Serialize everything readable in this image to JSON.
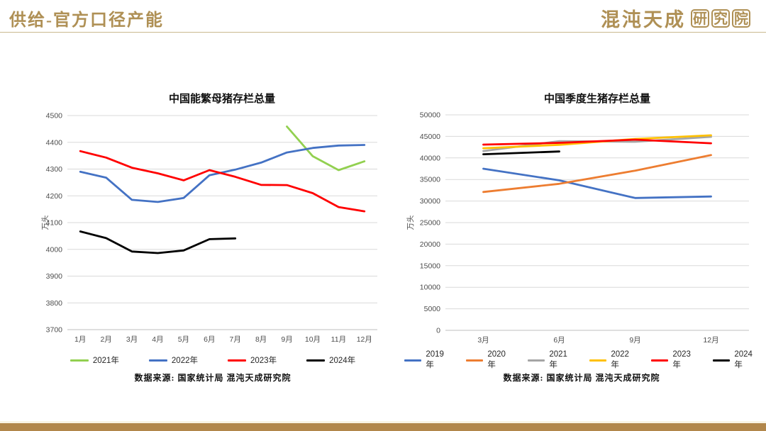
{
  "page": {
    "header": {
      "title": "供给-官方口径产能"
    },
    "logo": {
      "brand": "混沌天成",
      "seal_chars": [
        "研",
        "究",
        "院"
      ]
    },
    "colors": {
      "brand_gold": "#AF9055",
      "divider_tan": "#C9BA8F",
      "footer_gold": "#B2874B",
      "footer_cream": "#F9F4E4",
      "gridline_gray": "#D9D9D9",
      "axis_gray": "#BFBFBF"
    }
  },
  "chart_data": [
    {
      "type": "line",
      "title": "中国能繁母猪存栏总量",
      "ylabel": "万头",
      "xlabel": "",
      "ylim": [
        3700,
        4500
      ],
      "ytick_step": 100,
      "grid": true,
      "legend_position": "bottom",
      "categories": [
        "1月",
        "2月",
        "3月",
        "4月",
        "5月",
        "6月",
        "7月",
        "8月",
        "9月",
        "10月",
        "11月",
        "12月"
      ],
      "series": [
        {
          "name": "2021年",
          "color": "#92D050",
          "values": [
            null,
            null,
            null,
            null,
            null,
            null,
            null,
            null,
            4459,
            4348,
            4296,
            4329
          ]
        },
        {
          "name": "2022年",
          "color": "#4472C4",
          "values": [
            4290,
            4268,
            4185,
            4177,
            4192,
            4277,
            4298,
            4324,
            4362,
            4379,
            4388,
            4390
          ]
        },
        {
          "name": "2023年",
          "color": "#FF0000",
          "values": [
            4367,
            4343,
            4305,
            4284,
            4258,
            4296,
            4271,
            4241,
            4240,
            4210,
            4158,
            4142
          ]
        },
        {
          "name": "2024年",
          "color": "#000000",
          "values": [
            4067,
            4042,
            3992,
            3986,
            3996,
            4038,
            4041,
            null,
            null,
            null,
            null,
            null
          ]
        }
      ],
      "source": "数据来源: 国家统计局 混沌天成研究院"
    },
    {
      "type": "line",
      "title": "中国季度生猪存栏总量",
      "ylabel": "万头",
      "xlabel": "",
      "ylim": [
        0,
        50000
      ],
      "ytick_step": 5000,
      "grid": true,
      "legend_position": "bottom",
      "categories": [
        "3月",
        "6月",
        "9月",
        "12月"
      ],
      "series": [
        {
          "name": "2019年",
          "color": "#4472C4",
          "values": [
            37500,
            34800,
            30700,
            31050
          ]
        },
        {
          "name": "2020年",
          "color": "#ED7D31",
          "values": [
            32100,
            34000,
            37050,
            40650
          ]
        },
        {
          "name": "2021年",
          "color": "#A5A5A5",
          "values": [
            41600,
            43900,
            43750,
            44900
          ]
        },
        {
          "name": "2022年",
          "color": "#FFC000",
          "values": [
            42250,
            43050,
            44400,
            45250
          ]
        },
        {
          "name": "2023年",
          "color": "#FF0000",
          "values": [
            43100,
            43500,
            44250,
            43400
          ]
        },
        {
          "name": "2024年",
          "color": "#000000",
          "values": [
            40850,
            41500,
            null,
            null
          ]
        }
      ],
      "source": "数据来源: 国家统计局 混沌天成研究院"
    }
  ]
}
